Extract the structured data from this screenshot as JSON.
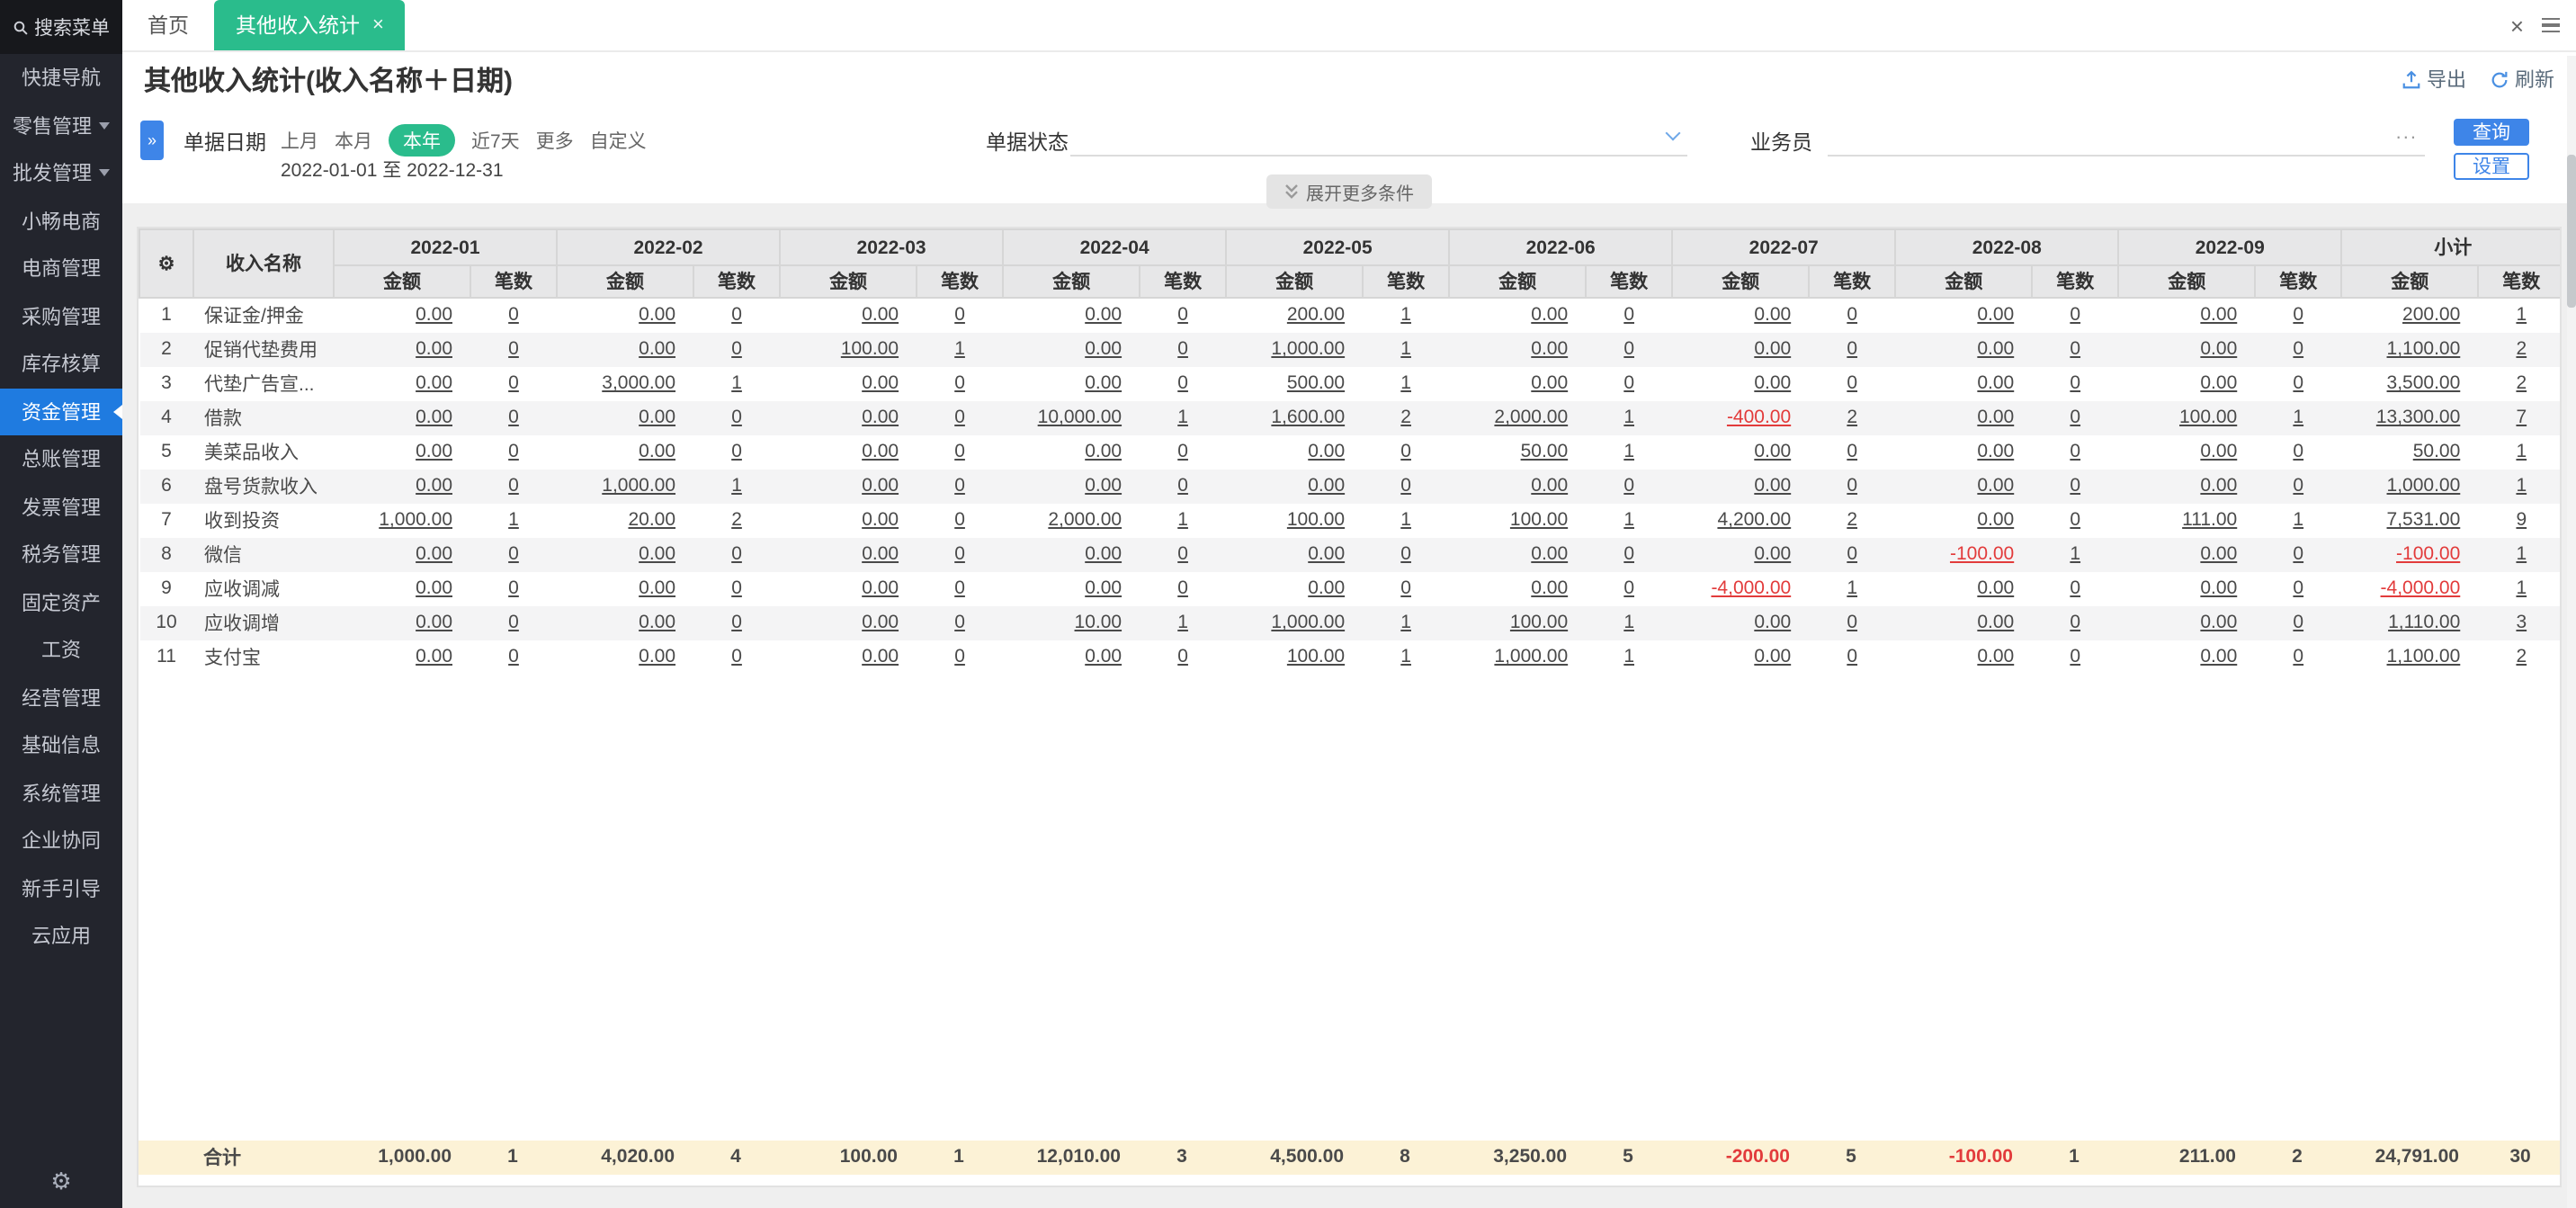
{
  "window": {
    "close_label": "×"
  },
  "sidebar": {
    "search_label": "搜索菜单",
    "items": [
      {
        "label": "快捷导航"
      },
      {
        "label": "零售管理",
        "caret": true
      },
      {
        "label": "批发管理",
        "caret": true
      },
      {
        "label": "小畅电商"
      },
      {
        "label": "电商管理"
      },
      {
        "label": "采购管理"
      },
      {
        "label": "库存核算"
      },
      {
        "label": "资金管理",
        "active": true
      },
      {
        "label": "总账管理"
      },
      {
        "label": "发票管理"
      },
      {
        "label": "税务管理"
      },
      {
        "label": "固定资产"
      },
      {
        "label": "工资"
      },
      {
        "label": "经营管理"
      },
      {
        "label": "基础信息"
      },
      {
        "label": "系统管理"
      },
      {
        "label": "企业协同"
      },
      {
        "label": "新手引导"
      },
      {
        "label": "云应用"
      }
    ]
  },
  "tabs": {
    "home": "首页",
    "active_tab": "其他收入统计",
    "close": "×"
  },
  "header": {
    "title": "其他收入统计(收入名称＋日期)",
    "export_label": "导出",
    "refresh_label": "刷新"
  },
  "filters": {
    "collapse_button": "»",
    "date_label": "单据日期",
    "quick_options": [
      "上月",
      "本月",
      "本年",
      "近7天",
      "更多",
      "自定义"
    ],
    "quick_active": "本年",
    "date_range": "2022-01-01 至 2022-12-31",
    "status_label": "单据状态",
    "salesman_label": "业务员",
    "salesman_more": "...",
    "query_button": "查询",
    "settings_button": "设置",
    "expand_more": "展开更多条件"
  },
  "table": {
    "name_header": "收入名称",
    "amount_header": "金额",
    "count_header": "笔数",
    "month_headers": [
      "2022-01",
      "2022-02",
      "2022-03",
      "2022-04",
      "2022-05",
      "2022-06",
      "2022-07",
      "2022-08",
      "2022-09",
      "小计"
    ],
    "rows": [
      {
        "index": 1,
        "name": "保证金/押金",
        "cells": [
          [
            "0.00",
            "0"
          ],
          [
            "0.00",
            "0"
          ],
          [
            "0.00",
            "0"
          ],
          [
            "0.00",
            "0"
          ],
          [
            "200.00",
            "1"
          ],
          [
            "0.00",
            "0"
          ],
          [
            "0.00",
            "0"
          ],
          [
            "0.00",
            "0"
          ],
          [
            "0.00",
            "0"
          ],
          [
            "200.00",
            "1"
          ]
        ]
      },
      {
        "index": 2,
        "name": "促销代垫费用",
        "cells": [
          [
            "0.00",
            "0"
          ],
          [
            "0.00",
            "0"
          ],
          [
            "100.00",
            "1"
          ],
          [
            "0.00",
            "0"
          ],
          [
            "1,000.00",
            "1"
          ],
          [
            "0.00",
            "0"
          ],
          [
            "0.00",
            "0"
          ],
          [
            "0.00",
            "0"
          ],
          [
            "0.00",
            "0"
          ],
          [
            "1,100.00",
            "2"
          ]
        ]
      },
      {
        "index": 3,
        "name": "代垫广告宣...",
        "cells": [
          [
            "0.00",
            "0"
          ],
          [
            "3,000.00",
            "1"
          ],
          [
            "0.00",
            "0"
          ],
          [
            "0.00",
            "0"
          ],
          [
            "500.00",
            "1"
          ],
          [
            "0.00",
            "0"
          ],
          [
            "0.00",
            "0"
          ],
          [
            "0.00",
            "0"
          ],
          [
            "0.00",
            "0"
          ],
          [
            "3,500.00",
            "2"
          ]
        ]
      },
      {
        "index": 4,
        "name": "借款",
        "cells": [
          [
            "0.00",
            "0"
          ],
          [
            "0.00",
            "0"
          ],
          [
            "0.00",
            "0"
          ],
          [
            "10,000.00",
            "1"
          ],
          [
            "1,600.00",
            "2"
          ],
          [
            "2,000.00",
            "1"
          ],
          [
            "-400.00",
            "2"
          ],
          [
            "0.00",
            "0"
          ],
          [
            "100.00",
            "1"
          ],
          [
            "13,300.00",
            "7"
          ]
        ]
      },
      {
        "index": 5,
        "name": "美菜品收入",
        "cells": [
          [
            "0.00",
            "0"
          ],
          [
            "0.00",
            "0"
          ],
          [
            "0.00",
            "0"
          ],
          [
            "0.00",
            "0"
          ],
          [
            "0.00",
            "0"
          ],
          [
            "50.00",
            "1"
          ],
          [
            "0.00",
            "0"
          ],
          [
            "0.00",
            "0"
          ],
          [
            "0.00",
            "0"
          ],
          [
            "50.00",
            "1"
          ]
        ]
      },
      {
        "index": 6,
        "name": "盘号货款收入",
        "cells": [
          [
            "0.00",
            "0"
          ],
          [
            "1,000.00",
            "1"
          ],
          [
            "0.00",
            "0"
          ],
          [
            "0.00",
            "0"
          ],
          [
            "0.00",
            "0"
          ],
          [
            "0.00",
            "0"
          ],
          [
            "0.00",
            "0"
          ],
          [
            "0.00",
            "0"
          ],
          [
            "0.00",
            "0"
          ],
          [
            "1,000.00",
            "1"
          ]
        ]
      },
      {
        "index": 7,
        "name": "收到投资",
        "cells": [
          [
            "1,000.00",
            "1"
          ],
          [
            "20.00",
            "2"
          ],
          [
            "0.00",
            "0"
          ],
          [
            "2,000.00",
            "1"
          ],
          [
            "100.00",
            "1"
          ],
          [
            "100.00",
            "1"
          ],
          [
            "4,200.00",
            "2"
          ],
          [
            "0.00",
            "0"
          ],
          [
            "111.00",
            "1"
          ],
          [
            "7,531.00",
            "9"
          ]
        ]
      },
      {
        "index": 8,
        "name": "微信",
        "cells": [
          [
            "0.00",
            "0"
          ],
          [
            "0.00",
            "0"
          ],
          [
            "0.00",
            "0"
          ],
          [
            "0.00",
            "0"
          ],
          [
            "0.00",
            "0"
          ],
          [
            "0.00",
            "0"
          ],
          [
            "0.00",
            "0"
          ],
          [
            "-100.00",
            "1"
          ],
          [
            "0.00",
            "0"
          ],
          [
            "-100.00",
            "1"
          ]
        ]
      },
      {
        "index": 9,
        "name": "应收调减",
        "cells": [
          [
            "0.00",
            "0"
          ],
          [
            "0.00",
            "0"
          ],
          [
            "0.00",
            "0"
          ],
          [
            "0.00",
            "0"
          ],
          [
            "0.00",
            "0"
          ],
          [
            "0.00",
            "0"
          ],
          [
            "-4,000.00",
            "1"
          ],
          [
            "0.00",
            "0"
          ],
          [
            "0.00",
            "0"
          ],
          [
            "-4,000.00",
            "1"
          ]
        ]
      },
      {
        "index": 10,
        "name": "应收调增",
        "cells": [
          [
            "0.00",
            "0"
          ],
          [
            "0.00",
            "0"
          ],
          [
            "0.00",
            "0"
          ],
          [
            "10.00",
            "1"
          ],
          [
            "1,000.00",
            "1"
          ],
          [
            "100.00",
            "1"
          ],
          [
            "0.00",
            "0"
          ],
          [
            "0.00",
            "0"
          ],
          [
            "0.00",
            "0"
          ],
          [
            "1,110.00",
            "3"
          ]
        ]
      },
      {
        "index": 11,
        "name": "支付宝",
        "cells": [
          [
            "0.00",
            "0"
          ],
          [
            "0.00",
            "0"
          ],
          [
            "0.00",
            "0"
          ],
          [
            "0.00",
            "0"
          ],
          [
            "100.00",
            "1"
          ],
          [
            "1,000.00",
            "1"
          ],
          [
            "0.00",
            "0"
          ],
          [
            "0.00",
            "0"
          ],
          [
            "0.00",
            "0"
          ],
          [
            "1,100.00",
            "2"
          ]
        ]
      }
    ],
    "total_label": "合计",
    "totals": [
      [
        "1,000.00",
        "1"
      ],
      [
        "4,020.00",
        "4"
      ],
      [
        "100.00",
        "1"
      ],
      [
        "12,010.00",
        "3"
      ],
      [
        "4,500.00",
        "8"
      ],
      [
        "3,250.00",
        "5"
      ],
      [
        "-200.00",
        "5"
      ],
      [
        "-100.00",
        "1"
      ],
      [
        "211.00",
        "2"
      ],
      [
        "24,791.00",
        "30"
      ]
    ]
  }
}
